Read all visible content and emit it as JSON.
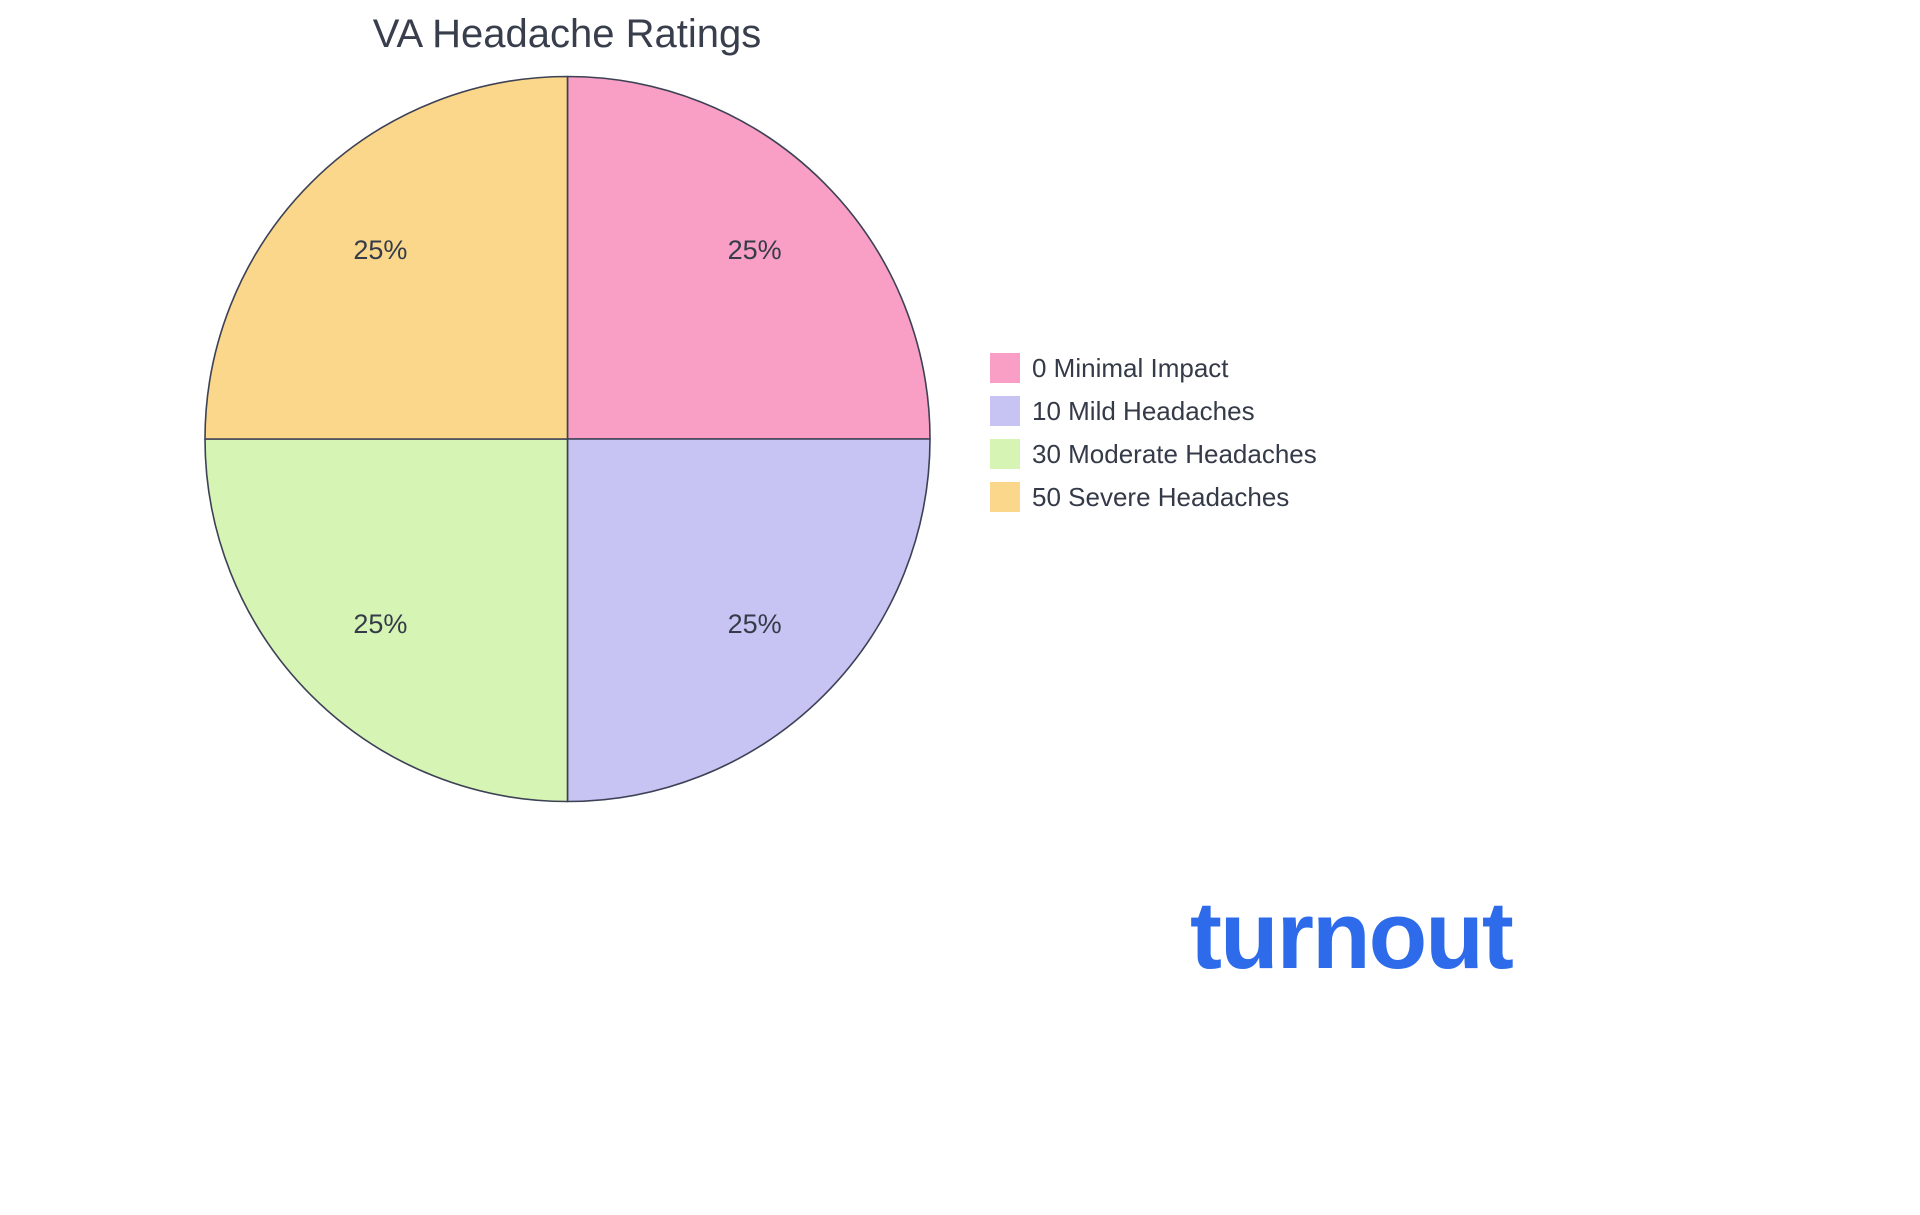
{
  "chart_data": {
    "type": "pie",
    "title": "VA Headache Ratings",
    "labels": [
      "0 Minimal Impact",
      "10 Mild Headaches",
      "30 Moderate Headaches",
      "50 Severe Headaches"
    ],
    "values": [
      25,
      25,
      25,
      25
    ],
    "slice_labels": [
      "25%",
      "25%",
      "25%",
      "25%"
    ],
    "colors": [
      "#F99FC6",
      "#C7C3F3",
      "#D6F5B4",
      "#FAD78B"
    ],
    "stroke_color": "#3C4154",
    "start_angle_deg": -90,
    "direction": "clockwise",
    "legend_position": "right",
    "label_color": "#353B49"
  },
  "brand": {
    "wordmark": "turnout",
    "color": "#2D6BEA"
  }
}
